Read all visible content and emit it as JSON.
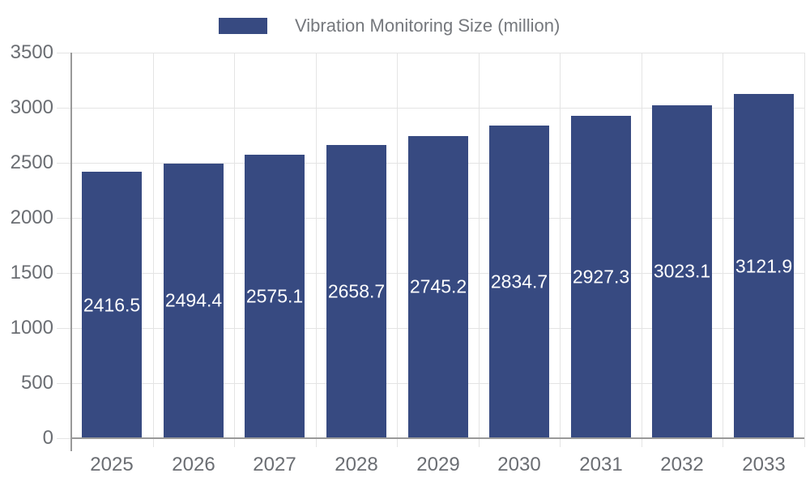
{
  "legend": {
    "label": "Vibration Monitoring Size (million)"
  },
  "chart_data": {
    "type": "bar",
    "title": "Vibration Monitoring Size (million)",
    "categories": [
      "2025",
      "2026",
      "2027",
      "2028",
      "2029",
      "2030",
      "2031",
      "2032",
      "2033"
    ],
    "values": [
      2416.5,
      2494.4,
      2575.1,
      2658.7,
      2745.2,
      2834.7,
      2927.3,
      3023.1,
      3121.9
    ],
    "value_labels": [
      "2416.5",
      "2494.4",
      "2575.1",
      "2658.7",
      "2745.2",
      "2834.7",
      "2927.3",
      "3023.1",
      "3121.9"
    ],
    "xlabel": "",
    "ylabel": "",
    "ylim": [
      0,
      3500
    ],
    "yticks": [
      0,
      500,
      1000,
      1500,
      2000,
      2500,
      3000,
      3500
    ],
    "ytick_labels": [
      "0",
      "500",
      "1000",
      "1500",
      "2000",
      "2500",
      "3000",
      "3500"
    ],
    "grid": true,
    "legend_position": "top",
    "value_label_position": "inside-center"
  },
  "colors": {
    "bar": "#374a81",
    "bar_label": "#ffffff",
    "gridline": "#e4e4e4",
    "axis_line": "#999999",
    "tick_label": "#6b6e73",
    "legend_text": "#75787d",
    "background": "#ffffff"
  }
}
